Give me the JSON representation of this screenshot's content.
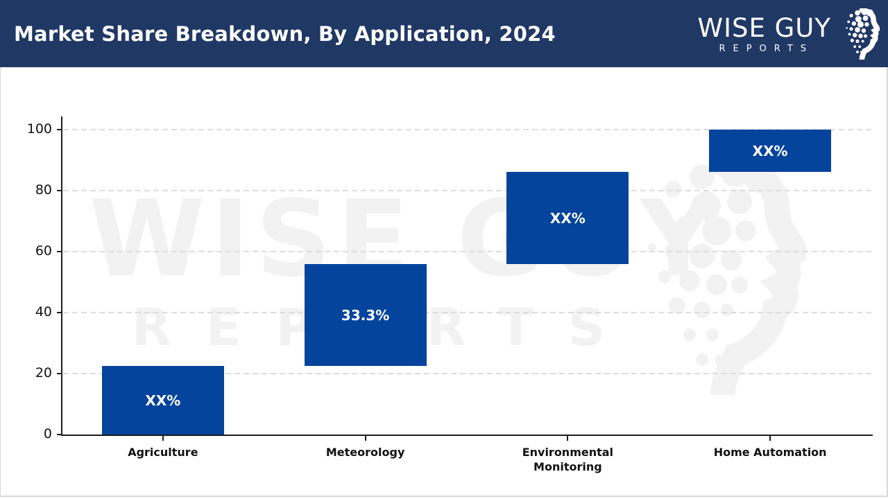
{
  "header": {
    "title": "Market Share Breakdown, By Application, 2024",
    "logo": {
      "wordmark": "WISE GUY",
      "subtext": "REPORTS"
    }
  },
  "chart_data": {
    "type": "bar",
    "variant": "waterfall",
    "title": "Market Share Breakdown, By Application, 2024",
    "categories": [
      "Agriculture",
      "Meteorology",
      "Environmental Monitoring",
      "Home Automation"
    ],
    "values": [
      22.5,
      33.3,
      30.3,
      13.9
    ],
    "cumulative_ranges": [
      [
        0,
        22.5
      ],
      [
        22.5,
        55.8
      ],
      [
        55.8,
        86.1
      ],
      [
        86.1,
        100
      ]
    ],
    "bar_labels": [
      "XX%",
      "33.3%",
      "XX%",
      "XX%"
    ],
    "xlabel": "",
    "ylabel": "",
    "ylim": [
      0,
      100
    ],
    "yticks": [
      0,
      20,
      40,
      60,
      80,
      100
    ],
    "grid": "horizontal-dashed",
    "legend": "none",
    "colors": {
      "bar": "#04449c",
      "bar_label": "#ffffff",
      "axis": "#1c1c1c",
      "gridline": "#dcdcdc",
      "tick_label": "#111111"
    }
  },
  "watermark": {
    "wordmark": "WISE GUY",
    "subtext": "REPORTS"
  },
  "colors": {
    "header_bg": "#203864",
    "header_text": "#ffffff",
    "panel_bg": "#ffffff",
    "frame_line": "#d8d8d8",
    "watermark": "#f2f2f2"
  }
}
